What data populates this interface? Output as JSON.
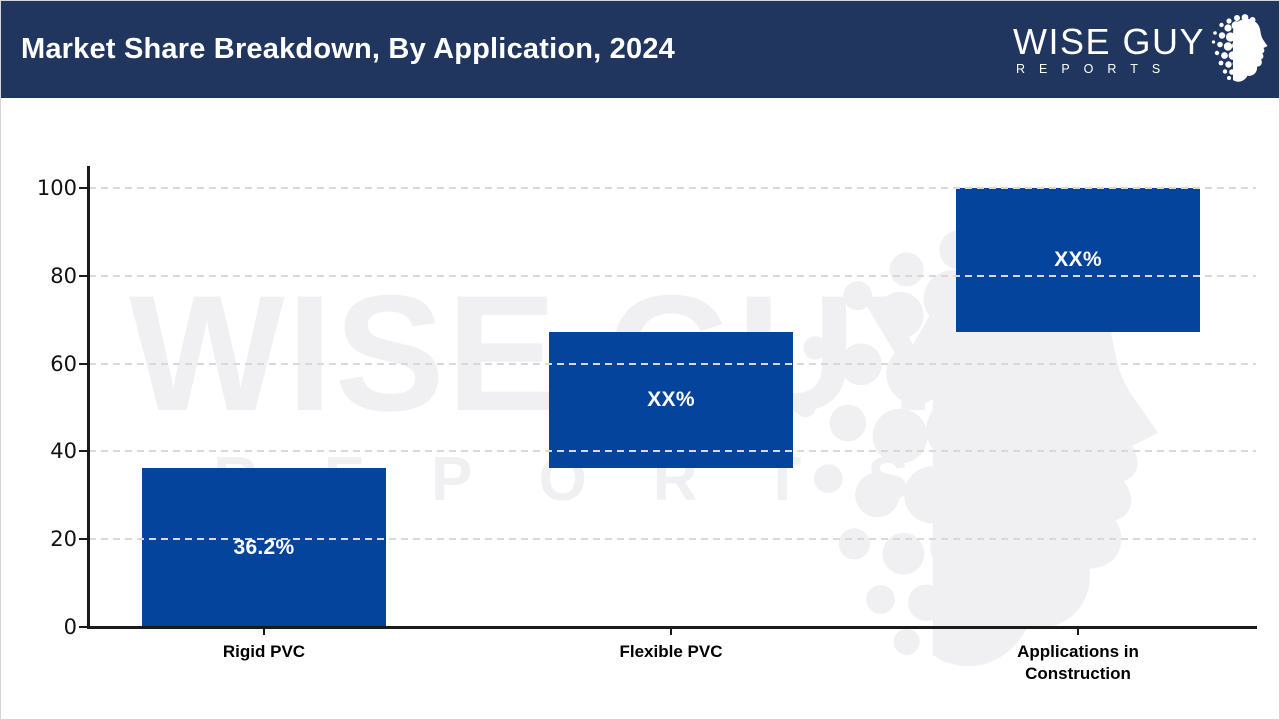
{
  "header": {
    "title": "Market Share Breakdown, By Application, 2024"
  },
  "brand": {
    "name": "WISE GUY",
    "subtitle": "REPORTS"
  },
  "watermark": {
    "line1": "WISE GUY",
    "line2": "REPORTS"
  },
  "colors": {
    "header_bg": "#20365f",
    "bar": "#04449c",
    "watermark": "#f0f0f2",
    "grid": "#d9d9d9",
    "axis": "#1a1a1a"
  },
  "chart_data": {
    "type": "bar",
    "subtype": "stacked-waterfall",
    "title": "Market Share Breakdown, By Application, 2024",
    "categories": [
      "Rigid PVC",
      "Flexible PVC",
      "Applications in Construction"
    ],
    "segments": [
      {
        "category": "Rigid PVC",
        "label": "36.2%",
        "start": 0,
        "end": 36.2
      },
      {
        "category": "Flexible PVC",
        "label": "XX%",
        "start": 36.2,
        "end": 67.2
      },
      {
        "category": "Applications in Construction",
        "label": "XX%",
        "start": 67.2,
        "end": 100
      }
    ],
    "xlabel": "",
    "ylabel": "",
    "yticks": [
      0,
      20,
      40,
      60,
      80,
      100
    ],
    "ylim": [
      0,
      105
    ],
    "grid": {
      "axis": "y",
      "style": "dashed"
    },
    "legend": null,
    "value_unit": "%"
  }
}
